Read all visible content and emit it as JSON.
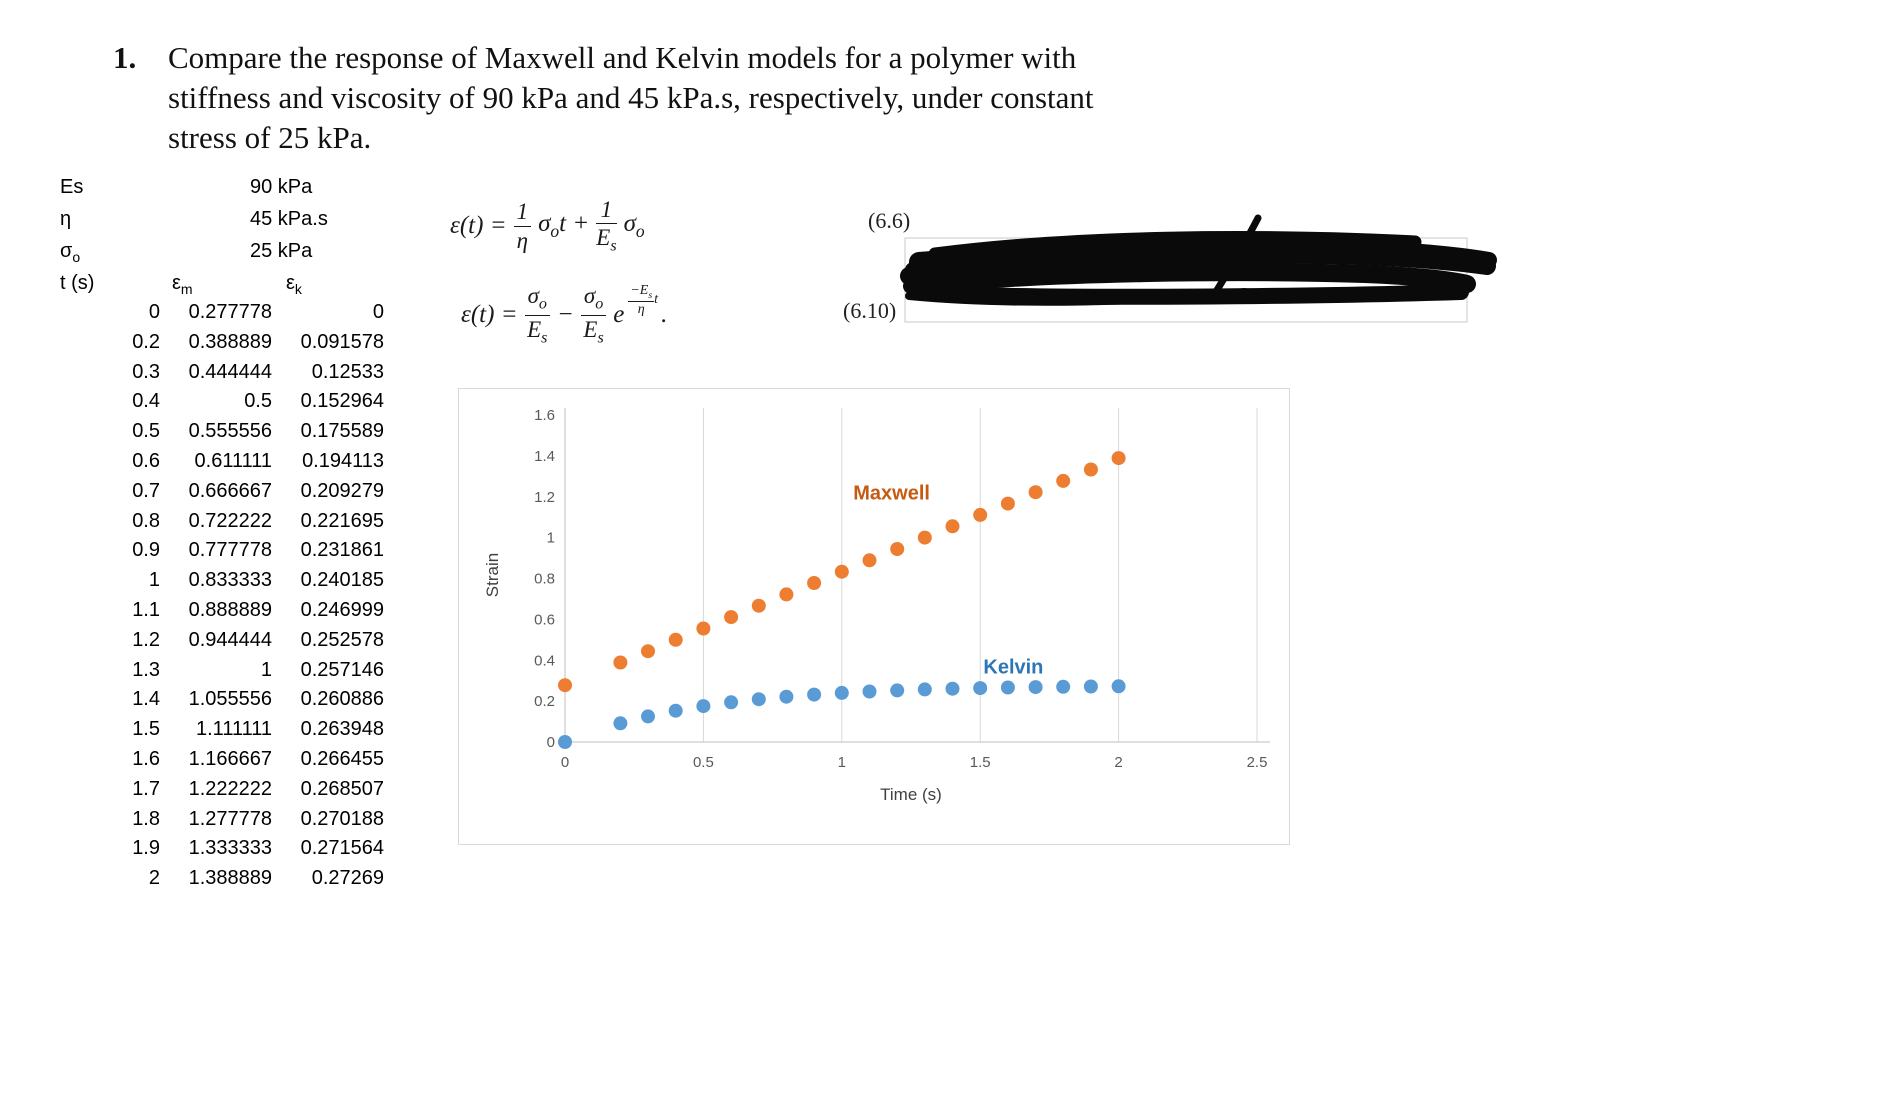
{
  "problem": {
    "number": "1.",
    "line1": "Compare the response of Maxwell and Kelvin models for a polymer with",
    "line2": "stiffness and viscosity of 90 kPa and 45 kPa.s, respectively, under constant",
    "line3": "stress of 25 kPa."
  },
  "param_table": {
    "rows": [
      {
        "label": "Es",
        "label_sub": "",
        "value": "90 kPa"
      },
      {
        "label": "η",
        "label_sub": "",
        "value": "45 kPa.s"
      },
      {
        "label": "σ",
        "label_sub": "o",
        "value": "25 kPa"
      },
      {
        "label": "t (s)",
        "label_sub": "",
        "value": ""
      }
    ],
    "col_headers": [
      {
        "base": "ε",
        "sub": "m"
      },
      {
        "base": "ε",
        "sub": "k"
      }
    ]
  },
  "data_table": {
    "rows": [
      [
        "0",
        "0.277778",
        "0"
      ],
      [
        "0.2",
        "0.388889",
        "0.091578"
      ],
      [
        "0.3",
        "0.444444",
        "0.12533"
      ],
      [
        "0.4",
        "0.5",
        "0.152964"
      ],
      [
        "0.5",
        "0.555556",
        "0.175589"
      ],
      [
        "0.6",
        "0.611111",
        "0.194113"
      ],
      [
        "0.7",
        "0.666667",
        "0.209279"
      ],
      [
        "0.8",
        "0.722222",
        "0.221695"
      ],
      [
        "0.9",
        "0.777778",
        "0.231861"
      ],
      [
        "1",
        "0.833333",
        "0.240185"
      ],
      [
        "1.1",
        "0.888889",
        "0.246999"
      ],
      [
        "1.2",
        "0.944444",
        "0.252578"
      ],
      [
        "1.3",
        "1",
        "0.257146"
      ],
      [
        "1.4",
        "1.055556",
        "0.260886"
      ],
      [
        "1.5",
        "1.111111",
        "0.263948"
      ],
      [
        "1.6",
        "1.166667",
        "0.266455"
      ],
      [
        "1.7",
        "1.222222",
        "0.268507"
      ],
      [
        "1.8",
        "1.277778",
        "0.270188"
      ],
      [
        "1.9",
        "1.333333",
        "0.271564"
      ],
      [
        "2",
        "1.388889",
        "0.27269"
      ]
    ]
  },
  "equations": {
    "eq66": {
      "lhs": "ε(t) =",
      "f1n": "1",
      "f1d": "η",
      "sigma1": "σ",
      "sigma1sub": "o",
      "t_plus": "t +",
      "f2n": "1",
      "f2d_base": "E",
      "f2d_sub": "s",
      "sigma2": "σ",
      "sigma2sub": "o",
      "number": "(6.6)"
    },
    "eq610": {
      "lhs": "ε(t) =",
      "f1n_base": "σ",
      "f1n_sub": "o",
      "f1d_base": "E",
      "f1d_sub": "s",
      "minus": "−",
      "f2n_base": "σ",
      "f2n_sub": "o",
      "f2d_base": "E",
      "f2d_sub": "s",
      "e": "e",
      "exp_n": "−E",
      "exp_n_sub": "s",
      "exp_d": "η",
      "exp_t": "t",
      "period": ".",
      "number": "(6.10)"
    }
  },
  "chart_data": {
    "type": "scatter",
    "title": "",
    "xlabel": "Time (s)",
    "ylabel": "Strain",
    "xlim": [
      0,
      2.5
    ],
    "ylim": [
      0,
      1.6
    ],
    "grid": "vertical",
    "xticks": [
      0,
      0.5,
      1,
      1.5,
      2,
      2.5
    ],
    "xtick_labels": [
      "0",
      "0.5",
      "1",
      "1.5",
      "2",
      "2.5"
    ],
    "yticks": [
      0,
      0.2,
      0.4,
      0.6,
      0.8,
      1,
      1.2,
      1.4,
      1.6
    ],
    "ytick_labels": [
      "0",
      "0.2",
      "0.4",
      "0.6",
      "0.8",
      "1",
      "1.2",
      "1.4",
      "1.6"
    ],
    "x": [
      0,
      0.2,
      0.3,
      0.4,
      0.5,
      0.6,
      0.7,
      0.8,
      0.9,
      1,
      1.1,
      1.2,
      1.3,
      1.4,
      1.5,
      1.6,
      1.7,
      1.8,
      1.9,
      2
    ],
    "series": [
      {
        "name": "Maxwell",
        "color": "#ED7D31",
        "label_color": "#C55A11",
        "label_pos": {
          "x": 1.18,
          "y": 1.22
        },
        "values": [
          0.277778,
          0.388889,
          0.444444,
          0.5,
          0.555556,
          0.611111,
          0.666667,
          0.722222,
          0.777778,
          0.833333,
          0.888889,
          0.944444,
          1,
          1.055556,
          1.111111,
          1.166667,
          1.222222,
          1.277778,
          1.333333,
          1.388889
        ]
      },
      {
        "name": "Kelvin",
        "color": "#5B9BD5",
        "label_color": "#2E75B6",
        "label_pos": {
          "x": 1.62,
          "y": 0.37
        },
        "values": [
          0,
          0.091578,
          0.12533,
          0.152964,
          0.175589,
          0.194113,
          0.209279,
          0.221695,
          0.231861,
          0.240185,
          0.246999,
          0.252578,
          0.257146,
          0.260886,
          0.263948,
          0.266455,
          0.268507,
          0.270188,
          0.271564,
          0.27269
        ]
      }
    ]
  }
}
